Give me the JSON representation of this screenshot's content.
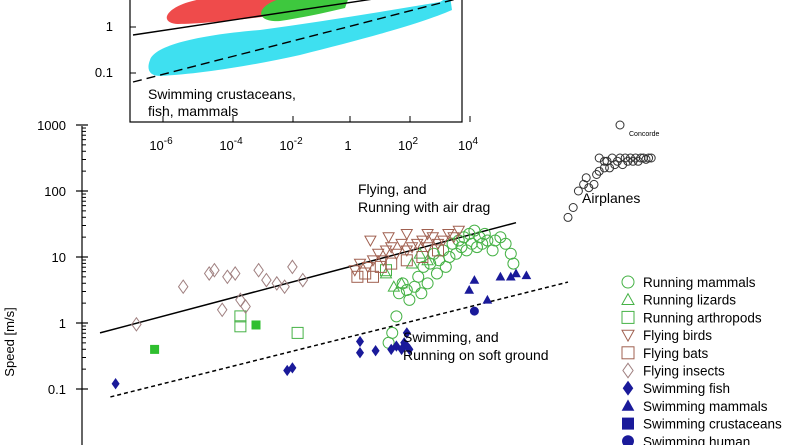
{
  "chart_data": {
    "type": "scatter",
    "xlabel": "",
    "ylabel": "Speed [m/s]",
    "y_scale": "log",
    "ylim_main": [
      0.06,
      1000
    ],
    "y_ticks_main": [
      "1000",
      "100",
      "10",
      "1",
      "0.1"
    ],
    "inset": {
      "x_scale": "log",
      "y_scale": "log",
      "x_ticks": [
        {
          "base": "10",
          "exp": "-6"
        },
        {
          "base": "10",
          "exp": "-4"
        },
        {
          "base": "10",
          "exp": "-2"
        },
        {
          "base": "1",
          "exp": ""
        },
        {
          "base": "10",
          "exp": "2"
        },
        {
          "base": "10",
          "exp": "4"
        }
      ],
      "y_ticks": [
        "1",
        "0.1"
      ],
      "regions": [
        {
          "name": "flying",
          "color": "#ef4b4b"
        },
        {
          "name": "running",
          "color": "#3ec83e"
        },
        {
          "name": "swimming",
          "color": "#3ee0f0"
        }
      ],
      "label_line1": "Swimming crustaceans,",
      "label_line2": "fish, mammals"
    },
    "annotations": {
      "flying_line1": "Flying, and",
      "flying_line2": "Running with air drag",
      "airplanes": "Airplanes",
      "concorde": "Concorde",
      "swimming_line1": "Swimming, and",
      "swimming_line2": "Running on soft ground"
    },
    "series": [
      {
        "name": "Running mammals",
        "marker": "circle-open",
        "color": "#46b246",
        "points": [
          [
            0.55,
            -0.3
          ],
          [
            0.62,
            -0.15
          ],
          [
            0.7,
            0.1
          ],
          [
            0.75,
            0.45
          ],
          [
            0.82,
            0.6
          ],
          [
            0.9,
            0.5
          ],
          [
            0.95,
            0.35
          ],
          [
            1.05,
            0.55
          ],
          [
            1.12,
            0.7
          ],
          [
            1.18,
            0.45
          ],
          [
            1.22,
            0.85
          ],
          [
            1.3,
            0.6
          ],
          [
            1.35,
            0.9
          ],
          [
            1.42,
            1.05
          ],
          [
            1.48,
            0.75
          ],
          [
            1.52,
            0.95
          ],
          [
            1.6,
            1.1
          ],
          [
            1.65,
            0.85
          ],
          [
            1.72,
            1.0
          ],
          [
            1.78,
            1.2
          ],
          [
            1.85,
            1.05
          ],
          [
            1.9,
            1.25
          ],
          [
            1.95,
            1.15
          ],
          [
            2.0,
            1.3
          ],
          [
            2.05,
            1.1
          ],
          [
            2.1,
            1.35
          ],
          [
            2.15,
            1.2
          ],
          [
            2.2,
            1.4
          ],
          [
            2.25,
            1.15
          ],
          [
            2.3,
            1.3
          ],
          [
            2.35,
            1.2
          ],
          [
            2.4,
            1.35
          ],
          [
            2.45,
            1.25
          ],
          [
            2.55,
            1.1
          ],
          [
            2.6,
            1.25
          ],
          [
            2.7,
            1.3
          ],
          [
            2.8,
            1.2
          ],
          [
            2.9,
            1.05
          ],
          [
            2.95,
            0.9
          ]
        ]
      },
      {
        "name": "Running lizards",
        "marker": "triangle-up-open",
        "color": "#46b246",
        "points": [
          [
            0.5,
            0.75
          ],
          [
            0.65,
            0.55
          ],
          [
            0.8,
            0.6
          ],
          [
            1.0,
            0.9
          ],
          [
            1.15,
            1.05
          ],
          [
            1.3,
            0.95
          ]
        ]
      },
      {
        "name": "Running arthropods",
        "marker": "square-open",
        "color": "#46b246",
        "points": [
          [
            -2.3,
            0.1
          ],
          [
            -2.3,
            -0.05
          ],
          [
            -1.2,
            -0.15
          ],
          [
            0.5,
            0.8
          ]
        ]
      },
      {
        "name": "Flying birds",
        "marker": "triangle-down-open",
        "color": "#a06050",
        "points": [
          [
            -0.1,
            0.8
          ],
          [
            0.0,
            0.9
          ],
          [
            0.15,
            0.85
          ],
          [
            0.25,
            0.95
          ],
          [
            0.35,
            1.05
          ],
          [
            0.45,
            0.95
          ],
          [
            0.5,
            1.1
          ],
          [
            0.6,
            1.15
          ],
          [
            0.7,
            1.05
          ],
          [
            0.8,
            1.2
          ],
          [
            0.9,
            1.1
          ],
          [
            1.0,
            1.15
          ],
          [
            1.1,
            1.2
          ],
          [
            1.2,
            1.25
          ],
          [
            1.3,
            1.15
          ],
          [
            1.4,
            1.3
          ],
          [
            1.5,
            1.2
          ],
          [
            1.6,
            1.25
          ],
          [
            1.7,
            1.35
          ],
          [
            1.8,
            1.3
          ],
          [
            1.9,
            1.4
          ],
          [
            0.2,
            1.25
          ],
          [
            0.55,
            1.3
          ],
          [
            0.9,
            1.35
          ],
          [
            1.3,
            1.35
          ]
        ]
      },
      {
        "name": "Flying bats",
        "marker": "square-open",
        "color": "#a06050",
        "points": [
          [
            -0.05,
            0.7
          ],
          [
            0.1,
            0.75
          ],
          [
            0.25,
            0.7
          ],
          [
            0.4,
            0.85
          ],
          [
            0.6,
            0.9
          ],
          [
            0.9,
            0.95
          ],
          [
            1.2,
            1.0
          ],
          [
            1.5,
            1.1
          ]
        ]
      },
      {
        "name": "Flying insects",
        "marker": "diamond-open",
        "color": "#a08080",
        "points": [
          [
            -4.3,
            -0.02
          ],
          [
            -3.4,
            0.55
          ],
          [
            -2.9,
            0.75
          ],
          [
            -2.8,
            0.8
          ],
          [
            -2.65,
            0.2
          ],
          [
            -2.55,
            0.7
          ],
          [
            -2.4,
            0.75
          ],
          [
            -2.3,
            0.35
          ],
          [
            -2.2,
            0.25
          ],
          [
            -1.95,
            0.8
          ],
          [
            -1.8,
            0.65
          ],
          [
            -1.6,
            0.6
          ],
          [
            -1.45,
            0.55
          ],
          [
            -1.3,
            0.85
          ],
          [
            -1.1,
            0.65
          ]
        ]
      },
      {
        "name": "Swimming fish",
        "marker": "diamond-filled",
        "color": "#1a1a9a",
        "points": [
          [
            -4.7,
            -0.92
          ],
          [
            -1.4,
            -0.72
          ],
          [
            -1.3,
            -0.68
          ],
          [
            0.0,
            -0.45
          ],
          [
            0.3,
            -0.42
          ],
          [
            0.6,
            -0.4
          ],
          [
            0.7,
            -0.35
          ],
          [
            0.8,
            -0.4
          ],
          [
            0.85,
            -0.3
          ],
          [
            0.9,
            -0.35
          ],
          [
            0.95,
            -0.4
          ],
          [
            0.9,
            -0.15
          ],
          [
            0.0,
            -0.28
          ]
        ]
      },
      {
        "name": "Swimming mammals",
        "marker": "triangle-up-filled",
        "color": "#1a1a9a",
        "points": [
          [
            2.1,
            0.5
          ],
          [
            2.2,
            0.65
          ],
          [
            2.45,
            0.35
          ],
          [
            2.7,
            0.7
          ],
          [
            2.9,
            0.7
          ],
          [
            3.0,
            0.75
          ],
          [
            3.2,
            0.72
          ]
        ]
      },
      {
        "name": "Swimming crustaceans",
        "marker": "square-filled",
        "color": "#1a1a9a",
        "points": []
      },
      {
        "name": "Swimming human",
        "marker": "circle-filled",
        "color": "#1a1a9a",
        "points": [
          [
            2.2,
            0.18
          ]
        ]
      },
      {
        "name": "Airplanes",
        "marker": "circle-open",
        "color": "#333333",
        "points": [
          [
            4.0,
            1.6
          ],
          [
            4.1,
            1.75
          ],
          [
            4.2,
            2.0
          ],
          [
            4.3,
            2.1
          ],
          [
            4.35,
            2.2
          ],
          [
            4.4,
            2.05
          ],
          [
            4.5,
            2.1
          ],
          [
            4.55,
            2.25
          ],
          [
            4.6,
            2.3
          ],
          [
            4.7,
            2.35
          ],
          [
            4.75,
            2.45
          ],
          [
            4.8,
            2.35
          ],
          [
            4.85,
            2.5
          ],
          [
            4.9,
            2.4
          ],
          [
            4.95,
            2.45
          ],
          [
            5.0,
            2.5
          ],
          [
            5.05,
            2.4
          ],
          [
            5.1,
            2.5
          ],
          [
            5.15,
            2.45
          ],
          [
            5.2,
            2.5
          ],
          [
            5.25,
            2.45
          ],
          [
            5.3,
            2.5
          ],
          [
            5.35,
            2.45
          ],
          [
            5.4,
            2.5
          ],
          [
            5.45,
            2.5
          ],
          [
            5.5,
            2.48
          ],
          [
            5.55,
            2.5
          ],
          [
            5.6,
            2.5
          ],
          [
            4.6,
            2.5
          ],
          [
            4.7,
            2.45
          ],
          [
            5.0,
            3.0
          ]
        ]
      }
    ],
    "extra_marks": {
      "running_arthropod_filled": [
        [
          -2.0,
          -0.03
        ],
        [
          -3.95,
          -0.4
        ]
      ]
    },
    "fit_lines": [
      {
        "name": "Flying, and Running with air drag",
        "style": "solid",
        "color": "#000000",
        "from": [
          -5.0,
          -0.15
        ],
        "to": [
          3.0,
          1.52
        ]
      },
      {
        "name": "Swimming, and Running on soft ground",
        "style": "dashed",
        "color": "#000000",
        "from": [
          -4.8,
          -1.12
        ],
        "to": [
          4.0,
          0.62
        ]
      }
    ],
    "legend": [
      "Running mammals",
      "Running lizards",
      "Running arthropods",
      "Flying birds",
      "Flying bats",
      "Flying insects",
      "Swimming fish",
      "Swimming mammals",
      "Swimming crustaceans",
      "Swimming human"
    ],
    "legend_placement": "bottom-right"
  }
}
